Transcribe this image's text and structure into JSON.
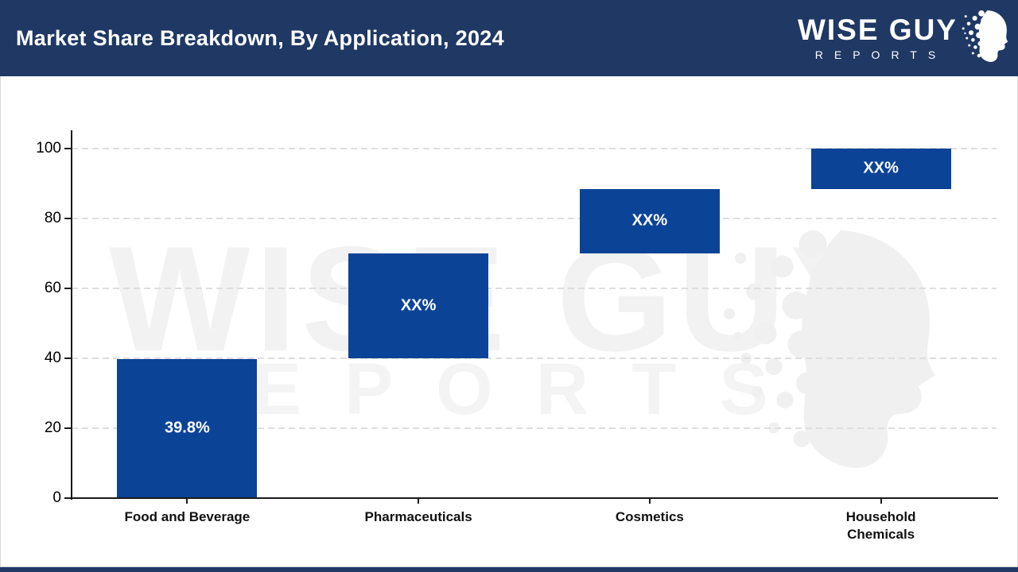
{
  "header": {
    "title": "Market Share Breakdown, By Application, 2024",
    "bg_color": "#1f3864",
    "logo": {
      "line1": "WISE GUY",
      "line2": "REPORTS"
    }
  },
  "watermark": {
    "line1": "WISE GUY",
    "line2": "REPORTS"
  },
  "chart_data": {
    "type": "bar",
    "subtype": "waterfall",
    "title": "Market Share Breakdown, By Application, 2024",
    "categories": [
      "Food and Beverage",
      "Pharmaceuticals",
      "Cosmetics",
      "Household\nChemicals"
    ],
    "segments": [
      {
        "category": "Food and Beverage",
        "start": 0,
        "end": 39.8,
        "label": "39.8%"
      },
      {
        "category": "Pharmaceuticals",
        "start": 40,
        "end": 70,
        "label": "XX%"
      },
      {
        "category": "Cosmetics",
        "start": 70,
        "end": 88.5,
        "label": "XX%"
      },
      {
        "category": "Household Chemicals",
        "start": 88.5,
        "end": 100,
        "label": "XX%"
      }
    ],
    "ylim": [
      0,
      100
    ],
    "yticks": [
      0,
      20,
      40,
      60,
      80,
      100
    ],
    "grid": "dashed-horizontal",
    "legend": "none",
    "bar_color": "#0b4397",
    "bar_label_color": "#ffffff",
    "axis_color": "#1a1a1a",
    "gridline_color": "#dedede"
  },
  "footer": {
    "bar_color": "#1f3864"
  }
}
